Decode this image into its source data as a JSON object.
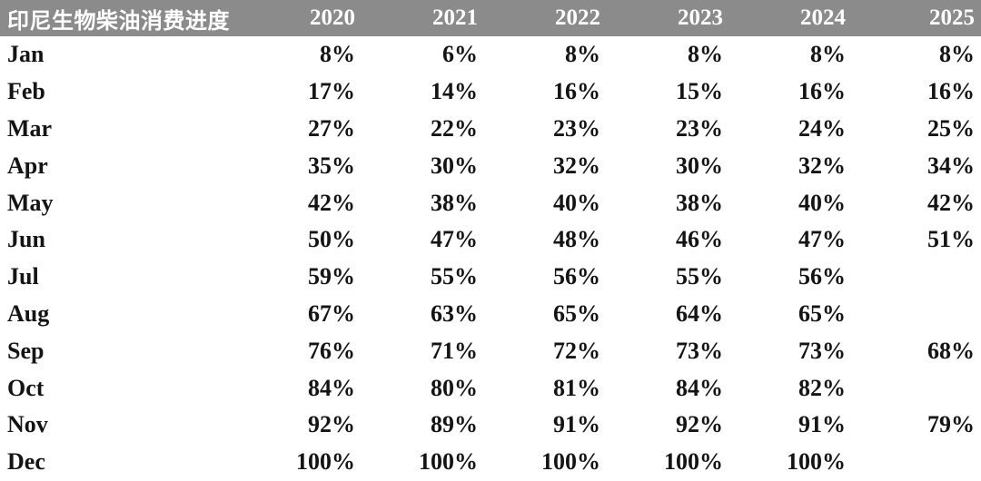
{
  "table": {
    "title": "印尼生物柴油消费进度",
    "years": [
      "2020",
      "2021",
      "2022",
      "2023",
      "2024",
      "2025"
    ],
    "rows": [
      {
        "month": "Jan",
        "values": [
          "8%",
          "6%",
          "8%",
          "8%",
          "8%",
          "8%"
        ]
      },
      {
        "month": "Feb",
        "values": [
          "17%",
          "14%",
          "16%",
          "15%",
          "16%",
          "16%"
        ]
      },
      {
        "month": "Mar",
        "values": [
          "27%",
          "22%",
          "23%",
          "23%",
          "24%",
          "25%"
        ]
      },
      {
        "month": "Apr",
        "values": [
          "35%",
          "30%",
          "32%",
          "30%",
          "32%",
          "34%"
        ]
      },
      {
        "month": "May",
        "values": [
          "42%",
          "38%",
          "40%",
          "38%",
          "40%",
          "42%"
        ]
      },
      {
        "month": "Jun",
        "values": [
          "50%",
          "47%",
          "48%",
          "46%",
          "47%",
          "51%"
        ]
      },
      {
        "month": "Jul",
        "values": [
          "59%",
          "55%",
          "56%",
          "55%",
          "56%",
          ""
        ]
      },
      {
        "month": "Aug",
        "values": [
          "67%",
          "63%",
          "65%",
          "64%",
          "65%",
          ""
        ]
      },
      {
        "month": "Sep",
        "values": [
          "76%",
          "71%",
          "72%",
          "73%",
          "73%",
          "68%"
        ]
      },
      {
        "month": "Oct",
        "values": [
          "84%",
          "80%",
          "81%",
          "84%",
          "82%",
          ""
        ]
      },
      {
        "month": "Nov",
        "values": [
          "92%",
          "89%",
          "91%",
          "92%",
          "91%",
          "79%"
        ]
      },
      {
        "month": "Dec",
        "values": [
          "100%",
          "100%",
          "100%",
          "100%",
          "100%",
          ""
        ]
      }
    ]
  },
  "colors": {
    "header_bg": "#8b8b8b",
    "header_text": "#ffffff",
    "body_text": "#141414",
    "background": "#ffffff"
  },
  "chart_data": {
    "type": "table",
    "title": "印尼生物柴油消费进度",
    "categories": [
      "Jan",
      "Feb",
      "Mar",
      "Apr",
      "May",
      "Jun",
      "Jul",
      "Aug",
      "Sep",
      "Oct",
      "Nov",
      "Dec"
    ],
    "unit": "%",
    "series": [
      {
        "name": "2020",
        "values": [
          8,
          17,
          27,
          35,
          42,
          50,
          59,
          67,
          76,
          84,
          92,
          100
        ]
      },
      {
        "name": "2021",
        "values": [
          6,
          14,
          22,
          30,
          38,
          47,
          55,
          63,
          71,
          80,
          89,
          100
        ]
      },
      {
        "name": "2022",
        "values": [
          8,
          16,
          23,
          32,
          40,
          48,
          56,
          65,
          72,
          81,
          91,
          100
        ]
      },
      {
        "name": "2023",
        "values": [
          8,
          15,
          23,
          30,
          38,
          46,
          55,
          64,
          73,
          84,
          92,
          100
        ]
      },
      {
        "name": "2024",
        "values": [
          8,
          16,
          24,
          32,
          40,
          47,
          56,
          65,
          73,
          82,
          91,
          100
        ]
      },
      {
        "name": "2025",
        "values": [
          8,
          16,
          25,
          34,
          42,
          51,
          null,
          null,
          68,
          null,
          79,
          null
        ]
      }
    ]
  }
}
